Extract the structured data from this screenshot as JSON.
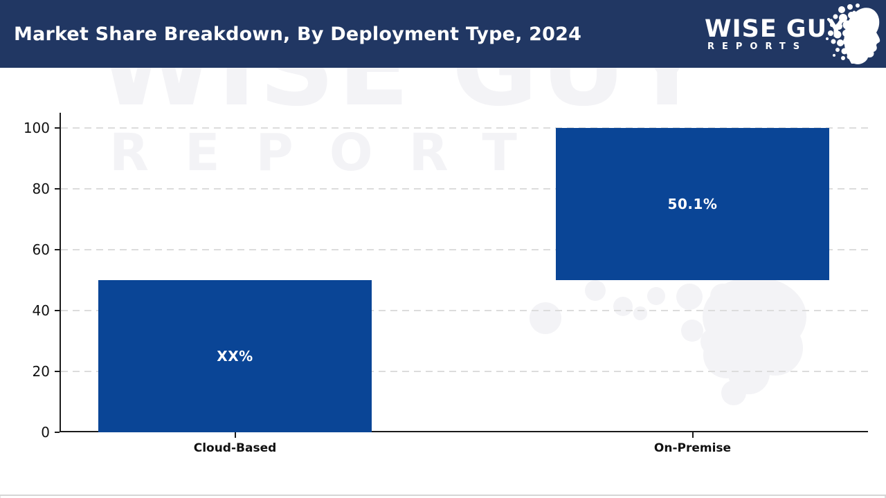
{
  "header": {
    "title": "Market Share Breakdown, By Deployment Type, 2024",
    "logo_line1": "WISE GUY",
    "logo_line2": "REPORTS",
    "bg_color": "#213763"
  },
  "watermark": {
    "line1": "WISE GUY",
    "line2": "REPORTS"
  },
  "chart_data": {
    "type": "bar",
    "subtype": "stacked-percentage-waterfall",
    "title": "Market Share Breakdown, By Deployment Type, 2024",
    "categories": [
      "Cloud-Based",
      "On-Premise"
    ],
    "bars": [
      {
        "category": "Cloud-Based",
        "start": 0,
        "end": 49.9,
        "label": "XX%"
      },
      {
        "category": "On-Premise",
        "start": 49.9,
        "end": 100,
        "label": "50.1%"
      }
    ],
    "xlabel": "",
    "ylabel": "",
    "ylim": [
      0,
      100
    ],
    "yticks": [
      0,
      20,
      40,
      60,
      80,
      100
    ],
    "grid": "horizontal-dashed",
    "legend": "none",
    "bar_color": "#0a4596",
    "bar_label_color": "#ffffff"
  }
}
